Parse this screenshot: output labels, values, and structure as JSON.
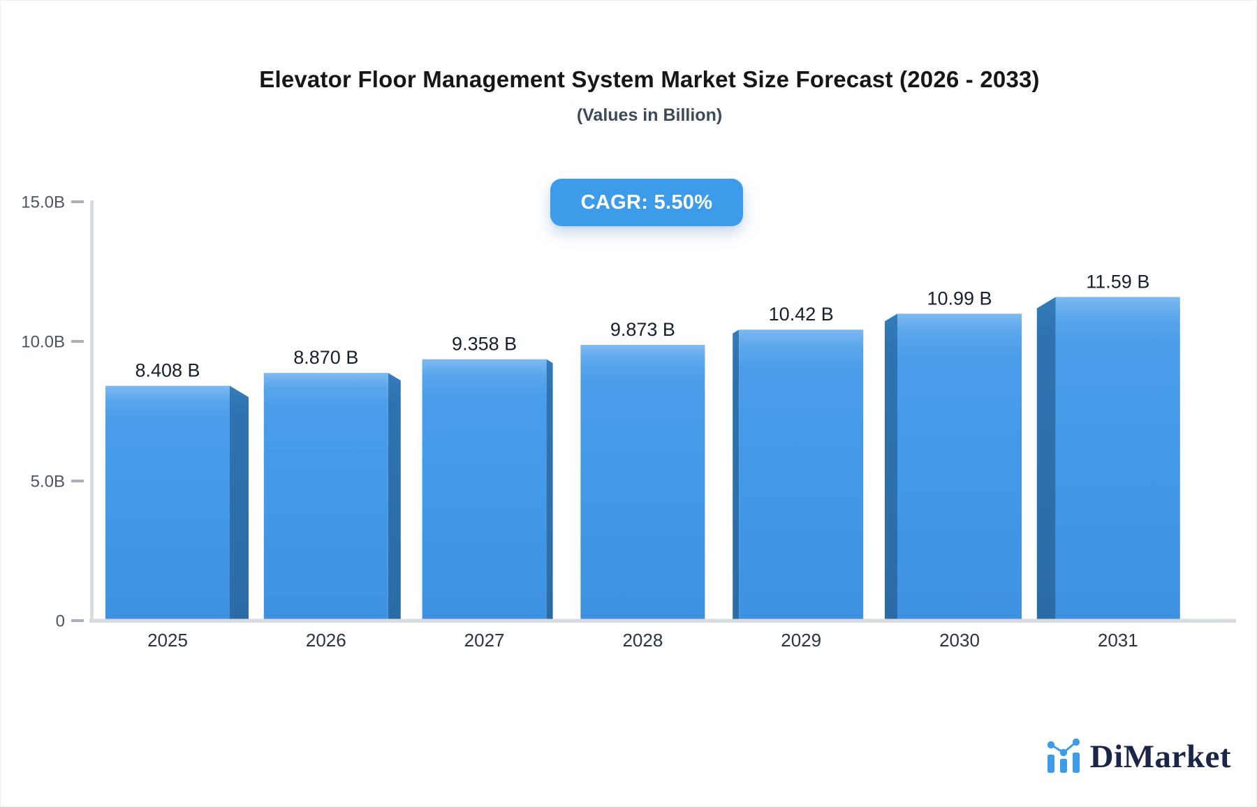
{
  "header": {
    "title": "Elevator Floor Management System Market Size Forecast (2026 - 2033)",
    "subtitle": "(Values in Billion)"
  },
  "badge": {
    "label": "CAGR: 5.50%"
  },
  "chart_data": {
    "type": "bar",
    "title": "Elevator Floor Management System Market Size Forecast (2026 - 2033)",
    "subtitle": "(Values in Billion)",
    "categories": [
      "2025",
      "2026",
      "2027",
      "2028",
      "2029",
      "2030",
      "2031"
    ],
    "values": [
      8.408,
      8.87,
      9.358,
      9.873,
      10.42,
      10.99,
      11.59
    ],
    "value_labels": [
      "8.408 B",
      "8.870 B",
      "9.358 B",
      "9.873 B",
      "10.42 B",
      "10.99 B",
      "11.59 B"
    ],
    "xlabel": "",
    "ylabel": "",
    "ylim": [
      0,
      15
    ],
    "yticks": [
      {
        "value": 15,
        "label": "15.0B"
      },
      {
        "value": 10,
        "label": "10.0B"
      },
      {
        "value": 5,
        "label": "5.0B"
      },
      {
        "value": 0,
        "label": "0"
      }
    ],
    "grid": false,
    "legend": null,
    "bar_style": "3d-perspective"
  },
  "style": {
    "background": "#FFFFFF",
    "bar_face": "#4299E8",
    "bar_face_light": "#7DB9F0",
    "bar_side": "#2E73B0",
    "bar_side_dark": "#2B6CA6",
    "axis_line": "#D8DCE1",
    "tick_dash": "#A9B0BA",
    "tick_text": "#4A5562",
    "value_text": "#16202E",
    "category_text": "#2B3440",
    "badge_bg": "#3D9CEA",
    "badge_text": "#FFFFFF",
    "title_text": "#161616",
    "subtitle_text": "#3E4A5A",
    "logo_text": "#1A2647",
    "logo_accent": "#3D9BE8"
  },
  "logo": {
    "name": "DiMarket",
    "icon": "mini-bar-chart-icon"
  }
}
